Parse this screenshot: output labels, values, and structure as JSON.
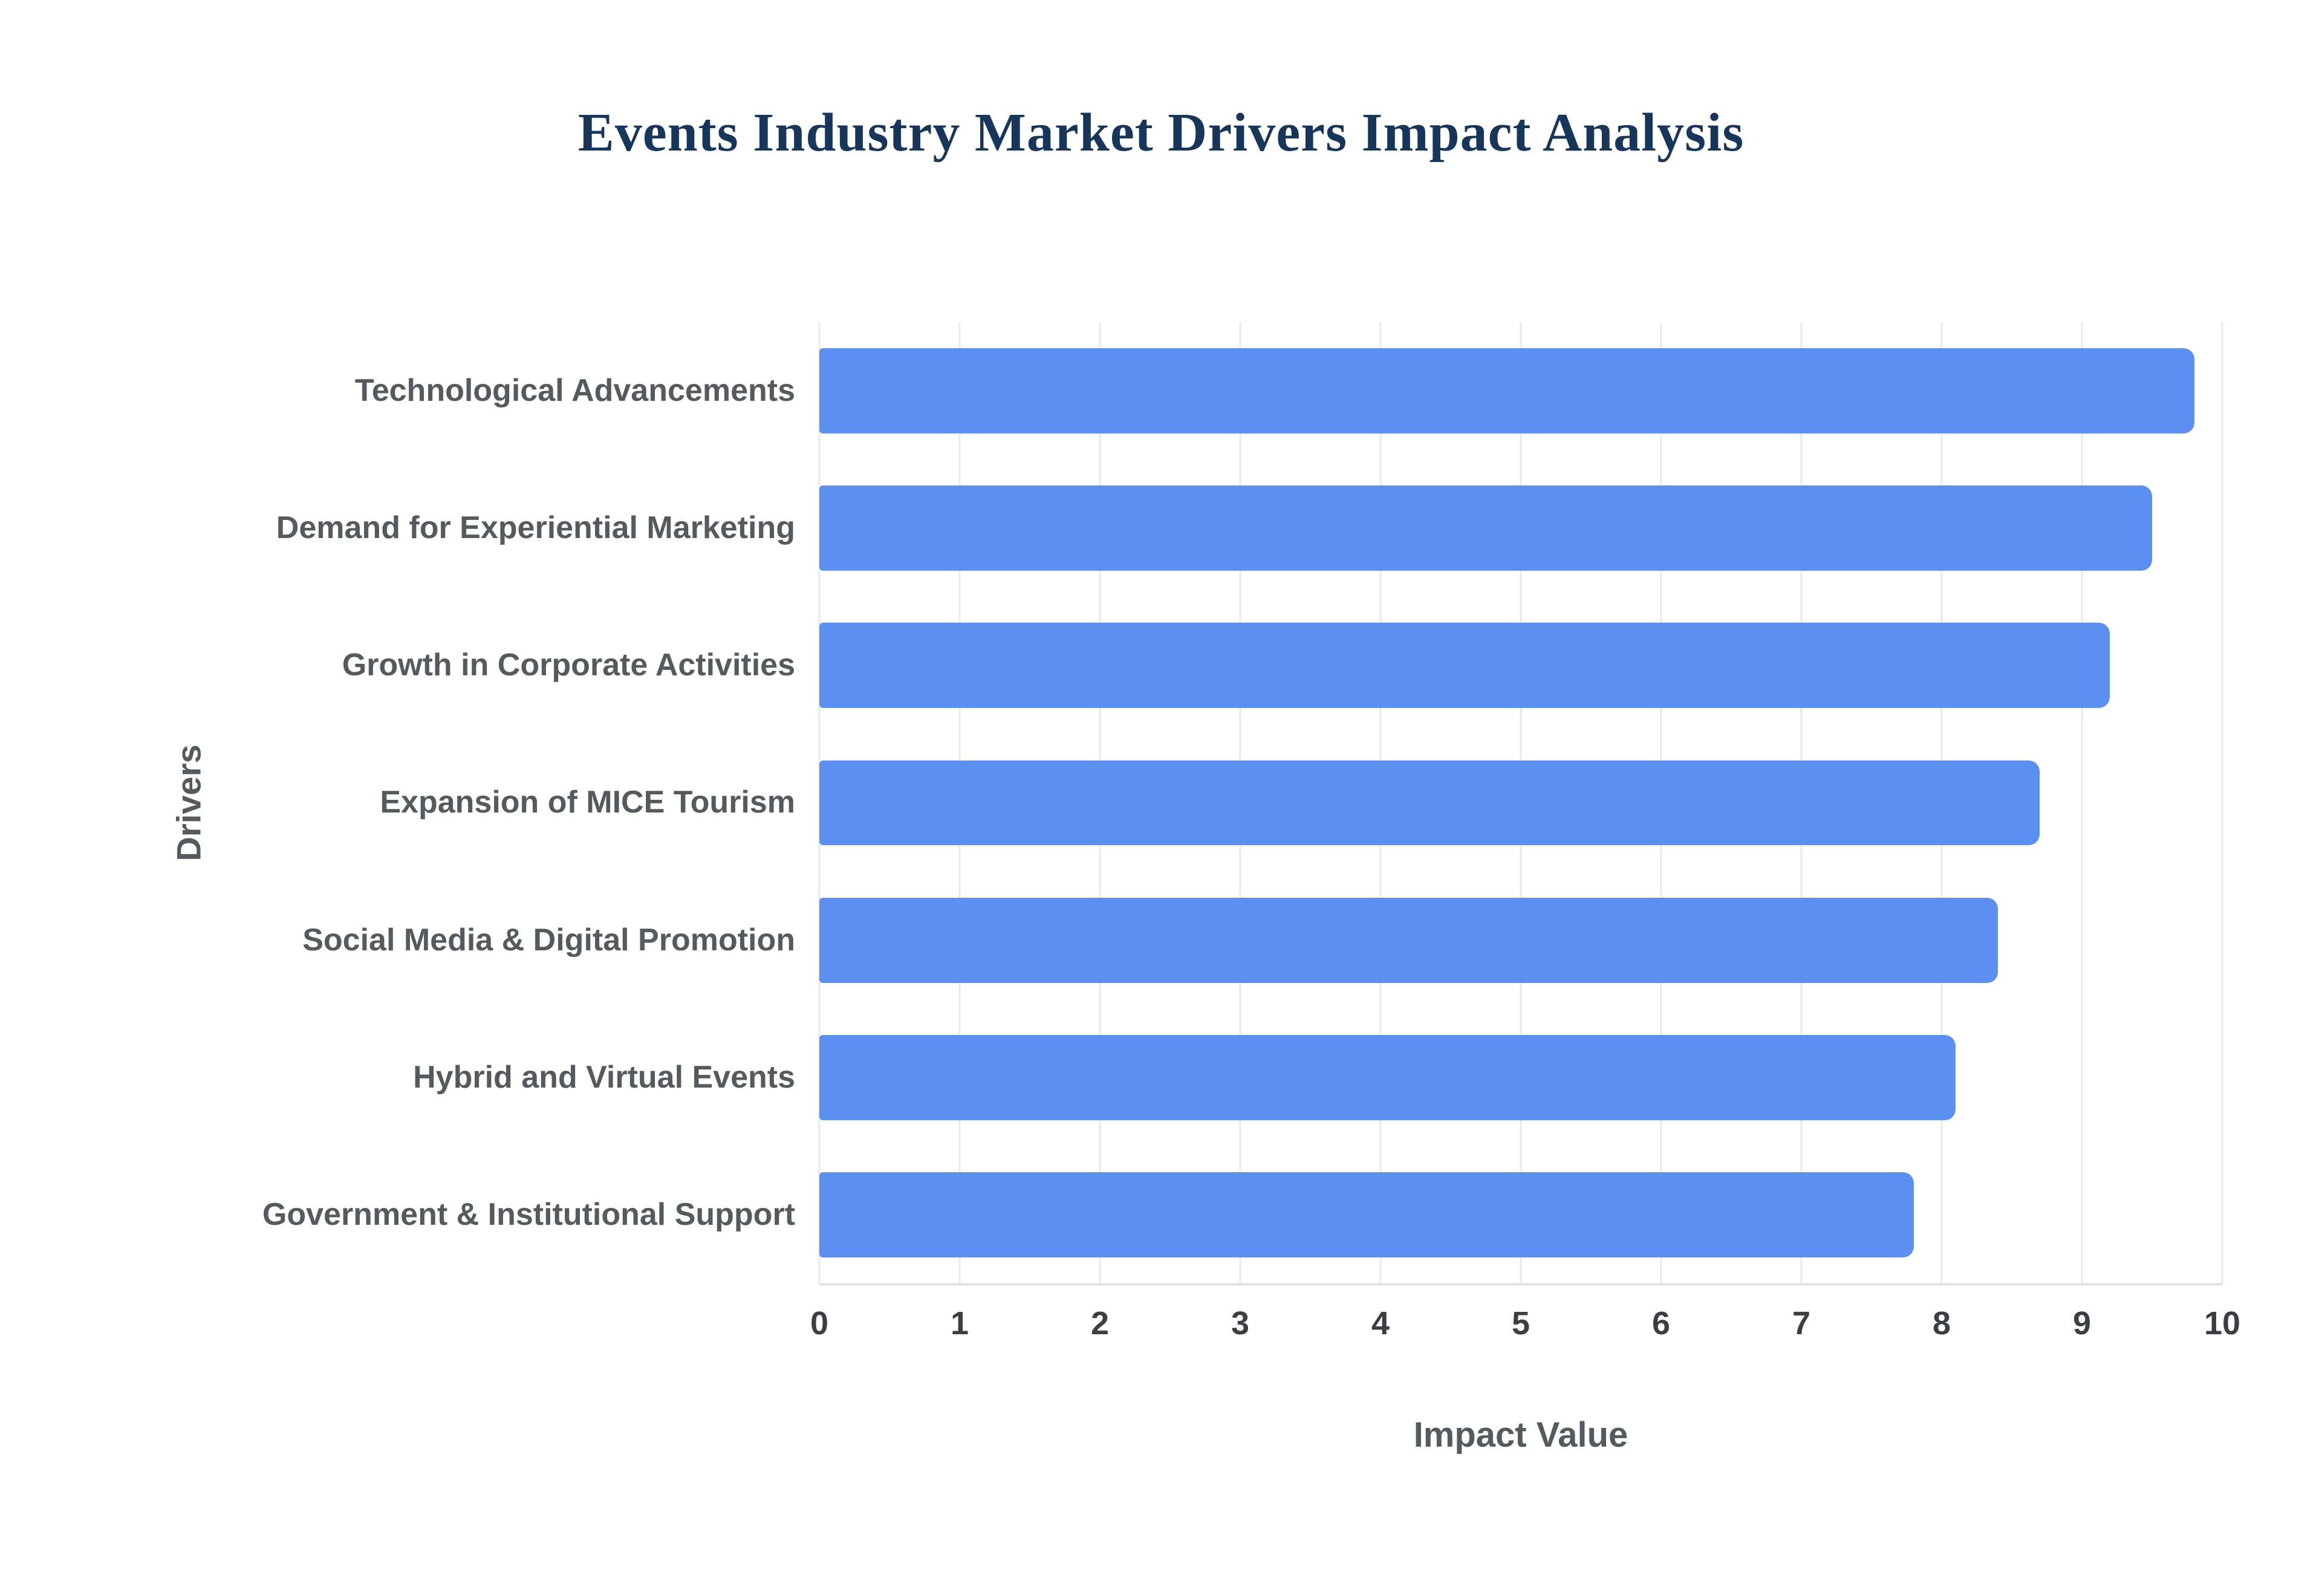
{
  "chart_data": {
    "type": "bar",
    "orientation": "horizontal",
    "title": "Events Industry Market Drivers Impact Analysis",
    "xlabel": "Impact Value",
    "ylabel": "Drivers",
    "categories": [
      "Technological Advancements",
      "Demand for Experiential Marketing",
      "Growth in Corporate Activities",
      "Expansion of MICE Tourism",
      "Social Media & Digital Promotion",
      "Hybrid and Virtual Events",
      "Government & Institutional Support"
    ],
    "values": [
      9.8,
      9.5,
      9.2,
      8.7,
      8.4,
      8.1,
      7.8
    ],
    "xlim": [
      0,
      10
    ],
    "x_ticks": [
      0,
      1,
      2,
      3,
      4,
      5,
      6,
      7,
      8,
      9,
      10
    ],
    "grid": "vertical",
    "bar_color": "#5b8ff2",
    "gridline_color": "#e6e8ea",
    "title_color": "#16365c",
    "label_color": "#555a5f",
    "tick_color": "#3b3f44",
    "legend": "none"
  }
}
